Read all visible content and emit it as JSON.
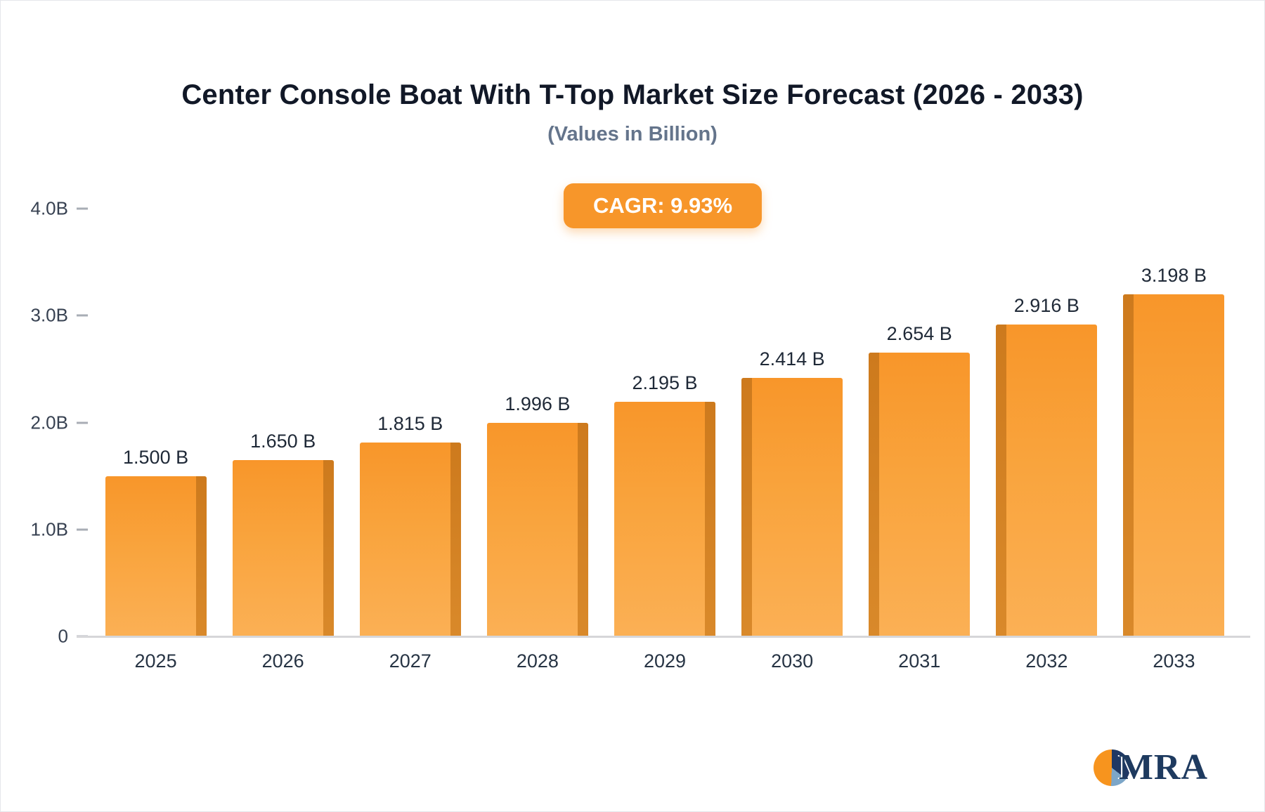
{
  "title": "Center Console Boat With T-Top Market Size Forecast (2026 - 2033)",
  "subtitle": "(Values in Billion)",
  "badge": {
    "text": "CAGR: 9.93%"
  },
  "logo": {
    "text": "MRA"
  },
  "colors": {
    "bar": "#f9a43d",
    "bar_side": "#cd7a1d",
    "badge_bg": "#f7962a",
    "title_text": "#111827",
    "subtitle_text": "#64748b",
    "axis_text": "#374151",
    "logo_navy": "#1e3a5f",
    "logo_orange": "#f7941e",
    "logo_steel_blue": "#7ca6c8"
  },
  "chart_data": {
    "type": "bar",
    "title": "Center Console Boat With T-Top Market Size Forecast (2026 - 2033)",
    "subtitle": "(Values in Billion)",
    "xlabel": "",
    "ylabel": "",
    "ylim": [
      0,
      4.0
    ],
    "grid": false,
    "legend": false,
    "categories": [
      "2025",
      "2026",
      "2027",
      "2028",
      "2029",
      "2030",
      "2031",
      "2032",
      "2033"
    ],
    "values": [
      1.5,
      1.65,
      1.815,
      1.996,
      2.195,
      2.414,
      2.654,
      2.916,
      3.198
    ],
    "value_labels": [
      "1.500 B",
      "1.650 B",
      "1.815 B",
      "1.996 B",
      "2.195 B",
      "2.414 B",
      "2.654 B",
      "2.916 B",
      "3.198 B"
    ],
    "yticks": [
      {
        "label": "4.0B",
        "value": 4.0
      },
      {
        "label": "3.0B",
        "value": 3.0
      },
      {
        "label": "2.0B",
        "value": 2.0
      },
      {
        "label": "1.0B",
        "value": 1.0
      },
      {
        "label": "0",
        "value": 0.0
      }
    ],
    "annotation": "CAGR: 9.93%"
  }
}
